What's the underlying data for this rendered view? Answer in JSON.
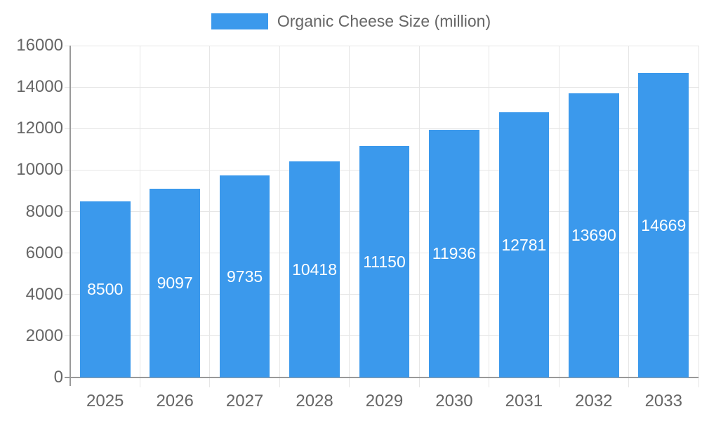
{
  "chart_data": {
    "type": "bar",
    "title": "Organic Cheese Size (million)",
    "legend_label": "Organic Cheese Size (million)",
    "legend_position": "top-center",
    "categories": [
      "2025",
      "2026",
      "2027",
      "2028",
      "2029",
      "2030",
      "2031",
      "2032",
      "2033"
    ],
    "values": [
      8500,
      9097,
      9735,
      10418,
      11150,
      11936,
      12781,
      13690,
      14669
    ],
    "data_labels": [
      "8500",
      "9097",
      "9735",
      "10418",
      "11150",
      "11936",
      "12781",
      "13690",
      "14669"
    ],
    "xlabel": "",
    "ylabel": "",
    "ylim": [
      0,
      16000
    ],
    "y_tick_step": 2000,
    "y_tick_labels": [
      "0",
      "2000",
      "4000",
      "6000",
      "8000",
      "10000",
      "12000",
      "14000",
      "16000"
    ],
    "grid": "on",
    "colors": {
      "bar": "#3b99ec",
      "bar_label_text": "#ffffff",
      "axis_text": "#666666",
      "gridline": "#e6e6e6",
      "axis_line": "#999999"
    }
  }
}
